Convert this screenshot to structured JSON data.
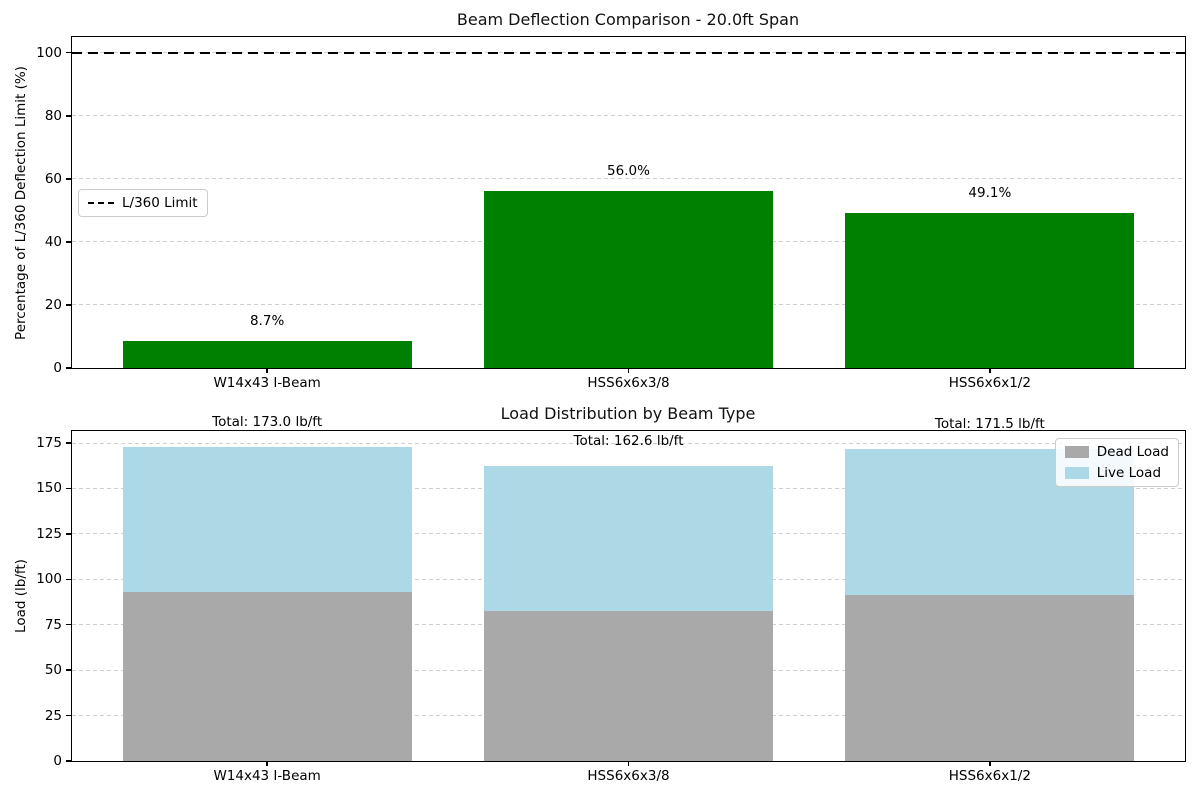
{
  "figure": {
    "background": "#ffffff"
  },
  "chart_data": [
    {
      "type": "bar",
      "title": "Beam Deflection Comparison - 20.0ft Span",
      "ylabel": "Percentage of L/360 Deflection Limit (%)",
      "xlabel": "",
      "categories": [
        "W14x43 I-Beam",
        "HSS6x6x3/8",
        "HSS6x6x1/2"
      ],
      "values": [
        8.7,
        56.0,
        49.1
      ],
      "value_labels": [
        "8.7%",
        "56.0%",
        "49.1%"
      ],
      "bar_color": "#008000",
      "yticks": [
        0,
        20,
        40,
        60,
        80,
        100
      ],
      "ylim": [
        0,
        105
      ],
      "grid": true,
      "limit_line": {
        "value": 100,
        "label": "L/360 Limit",
        "color": "#000000",
        "style": "dashed"
      },
      "legend": {
        "position": "center-left",
        "entries": [
          {
            "label": "L/360 Limit",
            "swatch": "dashed-line",
            "color": "#000000"
          }
        ]
      }
    },
    {
      "type": "stacked-bar",
      "title": "Load Distribution by Beam Type",
      "ylabel": "Load (lb/ft)",
      "xlabel": "",
      "categories": [
        "W14x43 I-Beam",
        "HSS6x6x3/8",
        "HSS6x6x1/2"
      ],
      "series": [
        {
          "name": "Dead Load",
          "color": "#a9a9a9",
          "values": [
            93.0,
            82.6,
            91.5
          ]
        },
        {
          "name": "Live Load",
          "color": "#add8e6",
          "values": [
            80.0,
            80.0,
            80.0
          ]
        }
      ],
      "totals": [
        173.0,
        162.6,
        171.5
      ],
      "total_labels": [
        "Total: 173.0 lb/ft",
        "Total: 162.6 lb/ft",
        "Total: 171.5 lb/ft"
      ],
      "yticks": [
        0,
        25,
        50,
        75,
        100,
        125,
        150,
        175
      ],
      "ylim": [
        0,
        181.65
      ],
      "grid": true,
      "legend": {
        "position": "top-right",
        "entries": [
          {
            "label": "Dead Load",
            "swatch": "patch",
            "color": "#a9a9a9"
          },
          {
            "label": "Live Load",
            "swatch": "patch",
            "color": "#add8e6"
          }
        ]
      }
    }
  ]
}
